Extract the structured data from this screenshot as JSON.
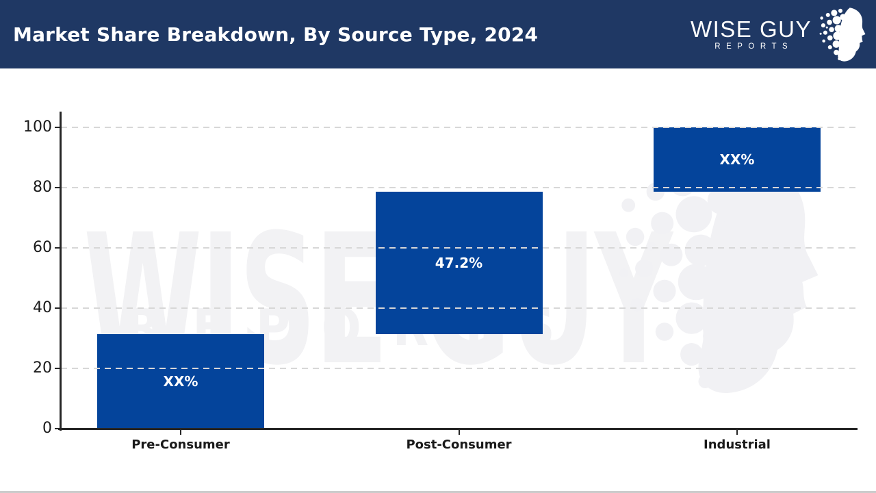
{
  "header": {
    "title": "Market Share Breakdown, By Source Type, 2024",
    "logo": {
      "name": "WISE GUY",
      "sub": "REPORTS"
    }
  },
  "watermark": {
    "line1": "WISE GUY",
    "line2": "REPORTS"
  },
  "colors": {
    "header_bg": "#1F3864",
    "bar_blue": "#04449B",
    "axis_line": "#262626",
    "tick_text": "#1a1a1a",
    "gridline": "#d7d7d7",
    "watermark": "#f2f2f4"
  },
  "chart_data": {
    "type": "bar",
    "subtype": "waterfall",
    "title": "Market Share Breakdown, By Source Type, 2024",
    "xlabel": "",
    "ylabel": "",
    "categories": [
      "Pre-Consumer",
      "Post-Consumer",
      "Industrial"
    ],
    "segments": [
      {
        "category": "Pre-Consumer",
        "start": 0,
        "end": 31.4,
        "label": "XX%"
      },
      {
        "category": "Post-Consumer",
        "start": 31.4,
        "end": 78.6,
        "label": "47.2%"
      },
      {
        "category": "Industrial",
        "start": 78.6,
        "end": 100,
        "label": "XX%"
      }
    ],
    "ylim": [
      0,
      100
    ],
    "yticks": [
      0,
      20,
      40,
      60,
      80,
      100
    ],
    "grid": "horizontal dashed, drawn above bars",
    "legend": "none",
    "bar_color": "#04449B",
    "bar_label_color": "#ffffff"
  }
}
